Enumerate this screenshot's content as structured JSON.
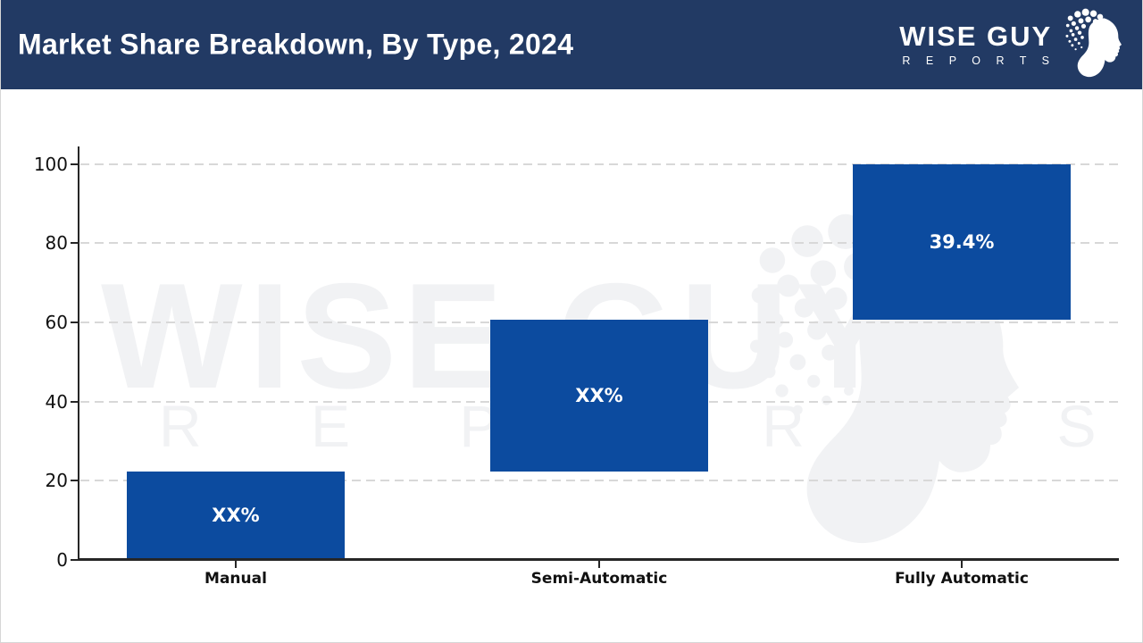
{
  "header": {
    "title": "Market Share Breakdown, By Type, 2024",
    "logo": {
      "line1": "WISE GUY",
      "line2": "R E P O R T S"
    }
  },
  "watermark": {
    "line1": "WISE GUY",
    "line2": "R E P O R T S"
  },
  "chart_data": {
    "type": "bar",
    "subtype": "stacked-waterfall",
    "title": "Market Share Breakdown, By Type, 2024",
    "categories": [
      "Manual",
      "Semi-Automatic",
      "Fully Automatic"
    ],
    "segments": [
      {
        "category": "Manual",
        "start": 0,
        "end": 22.4,
        "label": "XX%"
      },
      {
        "category": "Semi-Automatic",
        "start": 22.4,
        "end": 60.6,
        "label": "XX%"
      },
      {
        "category": "Fully Automatic",
        "start": 60.6,
        "end": 100,
        "label": "39.4%"
      }
    ],
    "yticks": [
      0,
      20,
      40,
      60,
      80,
      100
    ],
    "ylim": [
      0,
      104
    ],
    "xlabel": "",
    "ylabel": "",
    "grid": "horizontal-dashed",
    "legend": "none"
  },
  "colors": {
    "header_bg": "#223A64",
    "bar_fill": "#0C4B9F",
    "bar_label": "#FFFFFF",
    "grid": "#D8D8D8",
    "axis": "#262626",
    "watermark": "#F1F2F4"
  }
}
